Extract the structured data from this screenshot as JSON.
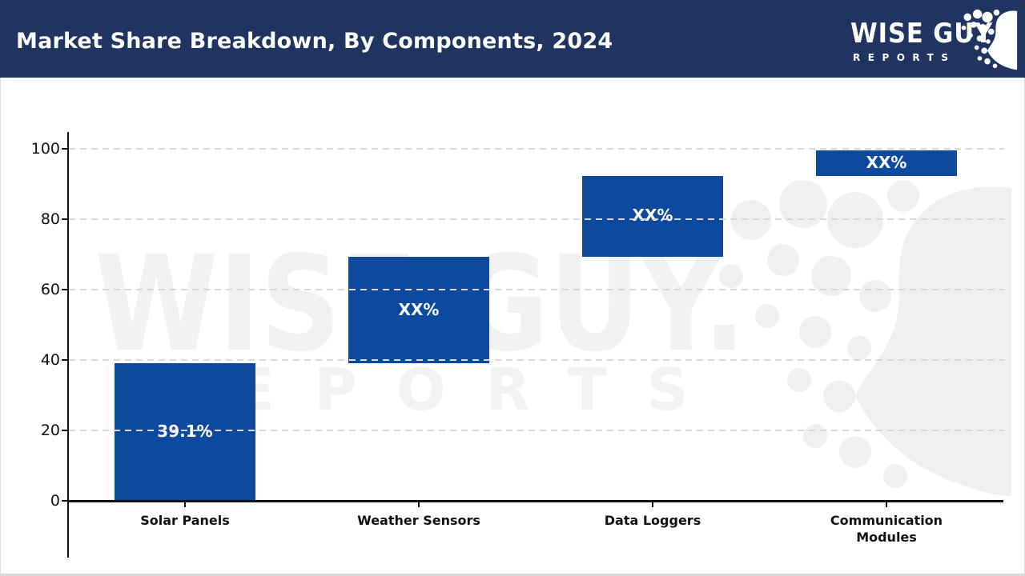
{
  "header": {
    "title": "Market Share Breakdown, By Components, 2024",
    "logo": {
      "line1": "WISE GUY",
      "line2": "REPORTS"
    }
  },
  "watermark": {
    "line1": "WISE GUY.",
    "line2": "REPORTS"
  },
  "chart_data": {
    "type": "bar",
    "subtype": "waterfall",
    "title": "Market Share Breakdown, By Components, 2024",
    "categories": [
      "Solar Panels",
      "Weather Sensors",
      "Data Loggers",
      "Communication Modules"
    ],
    "segments": [
      {
        "category": "Solar Panels",
        "start": 0,
        "end": 39.1,
        "label": "39.1%"
      },
      {
        "category": "Weather Sensors",
        "start": 39.1,
        "end": 69.3,
        "label": "XX%"
      },
      {
        "category": "Data Loggers",
        "start": 69.3,
        "end": 92.3,
        "label": "XX%"
      },
      {
        "category": "Communication Modules",
        "start": 92.3,
        "end": 99.6,
        "label": "XX%"
      }
    ],
    "yticks": [
      0,
      20,
      40,
      60,
      80,
      100
    ],
    "ylim": [
      0,
      104.8
    ],
    "xlabel": "",
    "ylabel": "",
    "grid": "horizontal-dashed-over-bars",
    "legend": "none",
    "bar_color": "#0d4a9e",
    "label_color": "#ffffff",
    "axis_color": "#111111",
    "grid_color": "#d9d9d9"
  }
}
